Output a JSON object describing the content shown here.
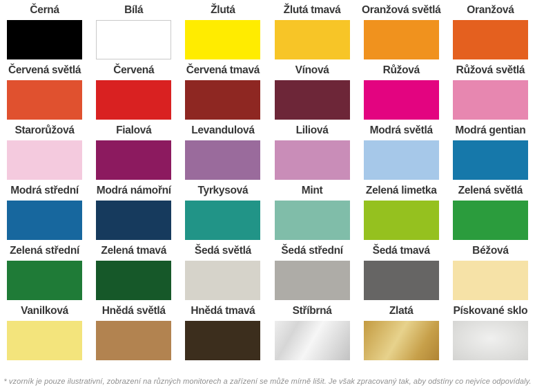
{
  "footnote": "* vzorník je pouze ilustrativní, zobrazení na různých monitorech a zařízení se může mírně lišit. Je však zpracovaný tak, aby odstíny co nejvíce odpovídaly.",
  "label_color": "#363636",
  "background": "#ffffff",
  "palette": {
    "columns": 6,
    "swatches": [
      {
        "label": "Černá",
        "fill": {
          "kind": "solid",
          "color": "#000000"
        }
      },
      {
        "label": "Bílá",
        "fill": {
          "kind": "solid",
          "color": "#ffffff",
          "border": "#c9c9c9"
        }
      },
      {
        "label": "Žlutá",
        "fill": {
          "kind": "solid",
          "color": "#ffec00"
        }
      },
      {
        "label": "Žlutá tmavá",
        "fill": {
          "kind": "solid",
          "color": "#f7c527"
        }
      },
      {
        "label": "Oranžová světlá",
        "fill": {
          "kind": "solid",
          "color": "#f0921e"
        }
      },
      {
        "label": "Oranžová",
        "fill": {
          "kind": "solid",
          "color": "#e4601f"
        }
      },
      {
        "label": "Červená světlá",
        "fill": {
          "kind": "solid",
          "color": "#e0512f"
        }
      },
      {
        "label": "Červená",
        "fill": {
          "kind": "solid",
          "color": "#d92121"
        }
      },
      {
        "label": "Červená tmavá",
        "fill": {
          "kind": "solid",
          "color": "#8e2722"
        }
      },
      {
        "label": "Vínová",
        "fill": {
          "kind": "solid",
          "color": "#6d2638"
        }
      },
      {
        "label": "Růžová",
        "fill": {
          "kind": "solid",
          "color": "#e30480"
        }
      },
      {
        "label": "Růžová světlá",
        "fill": {
          "kind": "solid",
          "color": "#e787b0"
        }
      },
      {
        "label": "Starorůžová",
        "fill": {
          "kind": "solid",
          "color": "#f4cade"
        }
      },
      {
        "label": "Fialová",
        "fill": {
          "kind": "solid",
          "color": "#8c1a5f"
        }
      },
      {
        "label": "Levandulová",
        "fill": {
          "kind": "solid",
          "color": "#9a6b9c"
        }
      },
      {
        "label": "Liliová",
        "fill": {
          "kind": "solid",
          "color": "#c98db8"
        }
      },
      {
        "label": "Modrá světlá",
        "fill": {
          "kind": "solid",
          "color": "#a6c8e9"
        }
      },
      {
        "label": "Modrá gentian",
        "fill": {
          "kind": "solid",
          "color": "#1678aa"
        }
      },
      {
        "label": "Modrá střední",
        "fill": {
          "kind": "solid",
          "color": "#17679e"
        }
      },
      {
        "label": "Modrá námořní",
        "fill": {
          "kind": "solid",
          "color": "#163a5d"
        }
      },
      {
        "label": "Tyrkysová",
        "fill": {
          "kind": "solid",
          "color": "#219487"
        }
      },
      {
        "label": "Mint",
        "fill": {
          "kind": "solid",
          "color": "#80bda9"
        }
      },
      {
        "label": "Zelená limetka",
        "fill": {
          "kind": "solid",
          "color": "#95c11f"
        }
      },
      {
        "label": "Zelená světlá",
        "fill": {
          "kind": "solid",
          "color": "#2b9c3d"
        }
      },
      {
        "label": "Zelená střední",
        "fill": {
          "kind": "solid",
          "color": "#1f7b37"
        }
      },
      {
        "label": "Zelená tmavá",
        "fill": {
          "kind": "solid",
          "color": "#165829"
        }
      },
      {
        "label": "Šedá světlá",
        "fill": {
          "kind": "solid",
          "color": "#d6d3ca"
        }
      },
      {
        "label": "Šedá střední",
        "fill": {
          "kind": "solid",
          "color": "#aeaca7"
        }
      },
      {
        "label": "Šedá tmavá",
        "fill": {
          "kind": "solid",
          "color": "#666564"
        }
      },
      {
        "label": "Béžová",
        "fill": {
          "kind": "solid",
          "color": "#f6e2a7"
        }
      },
      {
        "label": "Vanilková",
        "fill": {
          "kind": "solid",
          "color": "#f3e47c"
        }
      },
      {
        "label": "Hnědá světlá",
        "fill": {
          "kind": "solid",
          "color": "#b28350"
        }
      },
      {
        "label": "Hnědá tmavá",
        "fill": {
          "kind": "solid",
          "color": "#3c2e1d"
        }
      },
      {
        "label": "Stříbrná",
        "fill": {
          "kind": "linear",
          "angle": 120,
          "stops": [
            "#ededed 0%",
            "#d6d6d6 25%",
            "#f6f6f6 50%",
            "#c2c2c2 100%"
          ]
        }
      },
      {
        "label": "Zlatá",
        "fill": {
          "kind": "linear",
          "angle": 120,
          "stops": [
            "#c39a40 0%",
            "#e7d28c 45%",
            "#c7a04a 75%",
            "#b08434 100%"
          ]
        }
      },
      {
        "label": "Pískované sklo",
        "fill": {
          "kind": "radial",
          "stops": [
            "#f0f0ef 0%",
            "#dfdfdd 60%",
            "#d3d3d1 100%"
          ]
        }
      }
    ]
  }
}
